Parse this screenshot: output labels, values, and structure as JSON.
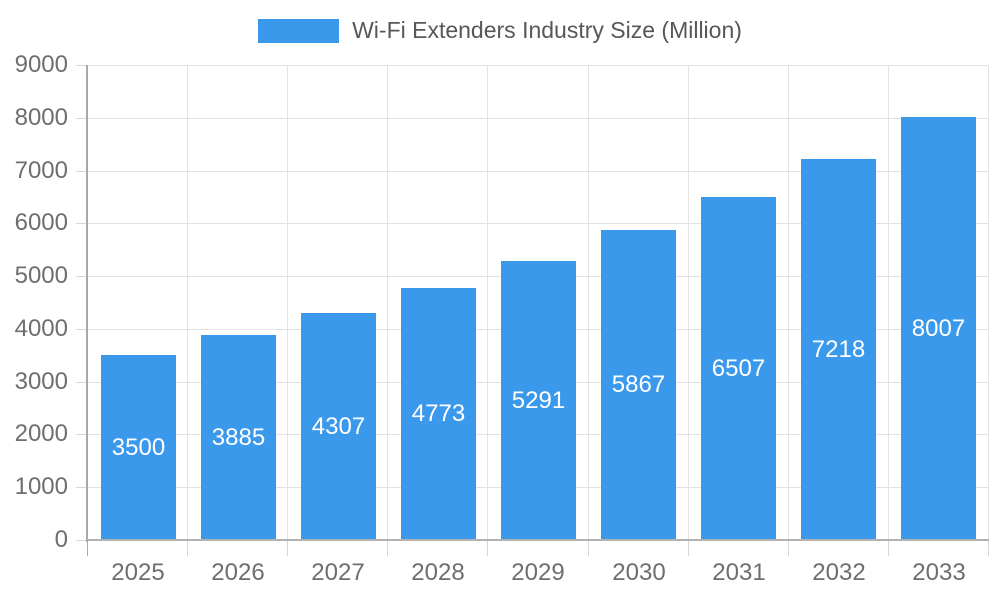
{
  "chart_data": {
    "type": "bar",
    "title": "Wi-Fi Extenders Industry Size (Million)",
    "categories": [
      "2025",
      "2026",
      "2027",
      "2028",
      "2029",
      "2030",
      "2031",
      "2032",
      "2033"
    ],
    "values": [
      3500,
      3885,
      4307,
      4773,
      5291,
      5867,
      6507,
      7218,
      8007
    ],
    "xlabel": "",
    "ylabel": "",
    "ylim": [
      0,
      9000
    ],
    "ytick_interval": 1000,
    "yticks": [
      "0",
      "1000",
      "2000",
      "3000",
      "4000",
      "5000",
      "6000",
      "7000",
      "8000",
      "9000"
    ],
    "grid": true,
    "legend_position": "top",
    "value_label_position": "inside-center"
  },
  "legend": {
    "label": "Wi-Fi Extenders Industry Size (Million)"
  },
  "colors": {
    "bar": "#3B99EC",
    "grid": "#E3E3E3",
    "tick": "#D6D6D6",
    "axis_line": "#A9A9A9",
    "baseline": "#B1B1B1",
    "axis_text": "#6E6E6E",
    "title_text": "#575757",
    "value_text": "#FFFFFF",
    "background": "#FFFFFF"
  }
}
